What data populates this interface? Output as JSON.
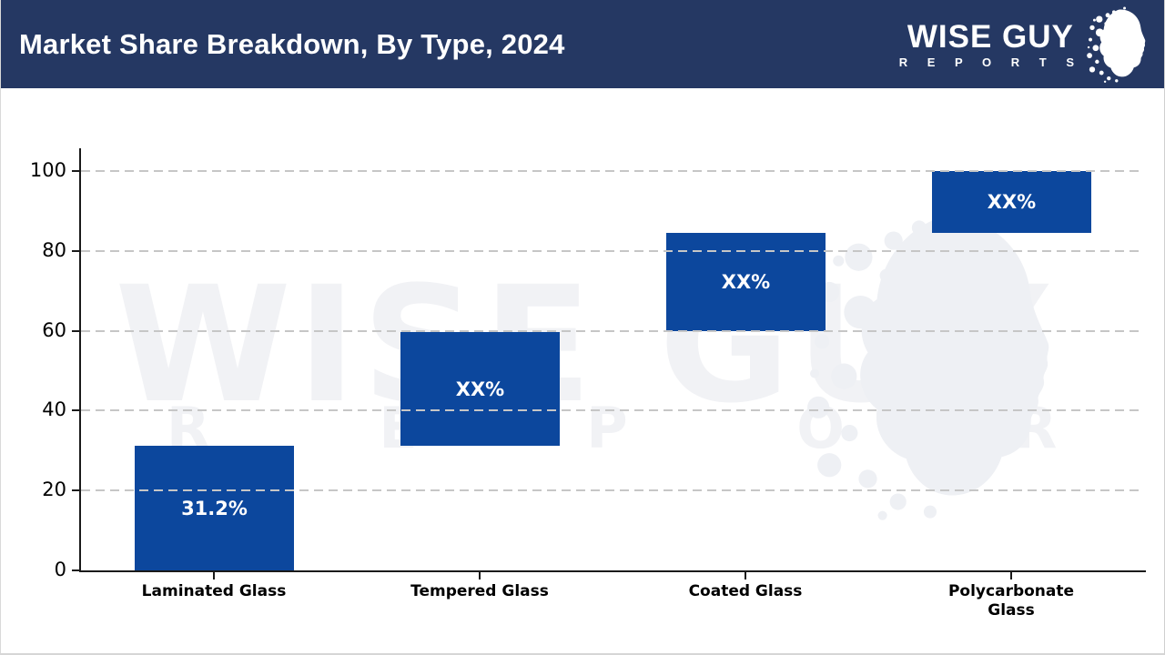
{
  "header": {
    "background": "#253863",
    "title": "Market Share Breakdown, By Type, 2024",
    "logo": {
      "line1": "WISE GUY",
      "line2": "R E P O R T S"
    }
  },
  "watermark": {
    "line1": "WISE GUY",
    "line2": "R E P O R T S"
  },
  "chart_data": {
    "type": "bar",
    "subtype": "waterfall",
    "title": "Market Share Breakdown, By Type, 2024",
    "categories": [
      "Laminated Glass",
      "Tempered Glass",
      "Coated Glass",
      "Polycarbonate Glass"
    ],
    "segments": [
      {
        "category": "Laminated Glass",
        "start": 0,
        "end": 31.2,
        "label": "31.2%"
      },
      {
        "category": "Tempered Glass",
        "start": 31.2,
        "end": 59.7,
        "label": "XX%"
      },
      {
        "category": "Coated Glass",
        "start": 59.7,
        "end": 84.4,
        "label": "XX%"
      },
      {
        "category": "Polycarbonate Glass",
        "start": 84.4,
        "end": 100,
        "label": "XX%"
      }
    ],
    "xlabel": "",
    "ylabel": "",
    "y_ticks": [
      0,
      20,
      40,
      60,
      80,
      100
    ],
    "ylim": [
      0,
      105
    ],
    "grid": "horizontal-dashed",
    "legend": "none",
    "bar_color": "#0c479d",
    "bar_label_color": "#ffffff",
    "grid_color": "#c6c6c6",
    "axis_color": "#1a1a1a",
    "tick_label_color": "#000000"
  }
}
